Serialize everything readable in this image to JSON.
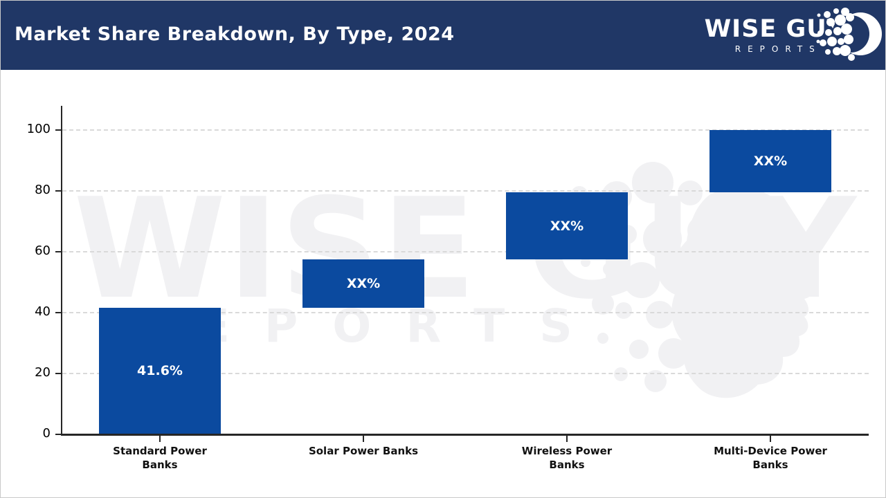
{
  "header": {
    "title": "Market Share Breakdown, By Type, 2024",
    "logo": {
      "line1": "WISE GUY",
      "line2": "REPORTS"
    }
  },
  "watermark": {
    "line1": "WISE GUY",
    "line2": "REPORTS"
  },
  "chart_data": {
    "type": "bar",
    "subtype": "waterfall",
    "title": "Market Share Breakdown, By Type, 2024",
    "categories": [
      "Standard Power Banks",
      "Solar Power Banks",
      "Wireless Power Banks",
      "Multi-Device Power Banks"
    ],
    "segments": [
      {
        "category": "Standard Power Banks",
        "start": 0,
        "end": 41.6,
        "label": "41.6%"
      },
      {
        "category": "Solar Power Banks",
        "start": 41.6,
        "end": 57.4,
        "label": "XX%"
      },
      {
        "category": "Wireless Power Banks",
        "start": 57.4,
        "end": 79.6,
        "label": "XX%"
      },
      {
        "category": "Multi-Device Power Banks",
        "start": 79.6,
        "end": 100,
        "label": "XX%"
      }
    ],
    "xlabel": "",
    "ylabel": "",
    "ylim": [
      0,
      100
    ],
    "yticks": [
      0,
      20,
      40,
      60,
      80,
      100
    ],
    "grid": "horizontal-dashed",
    "legend": "none",
    "bar_color": "#0B4A9F",
    "bar_label_color": "#ffffff"
  },
  "colors": {
    "header_bg": "#203766",
    "title_text": "#ffffff",
    "axis": "#262626",
    "gridline": "#d9d9d9",
    "watermark": "#f1f1f3",
    "page_border": "#c9c9c9"
  }
}
